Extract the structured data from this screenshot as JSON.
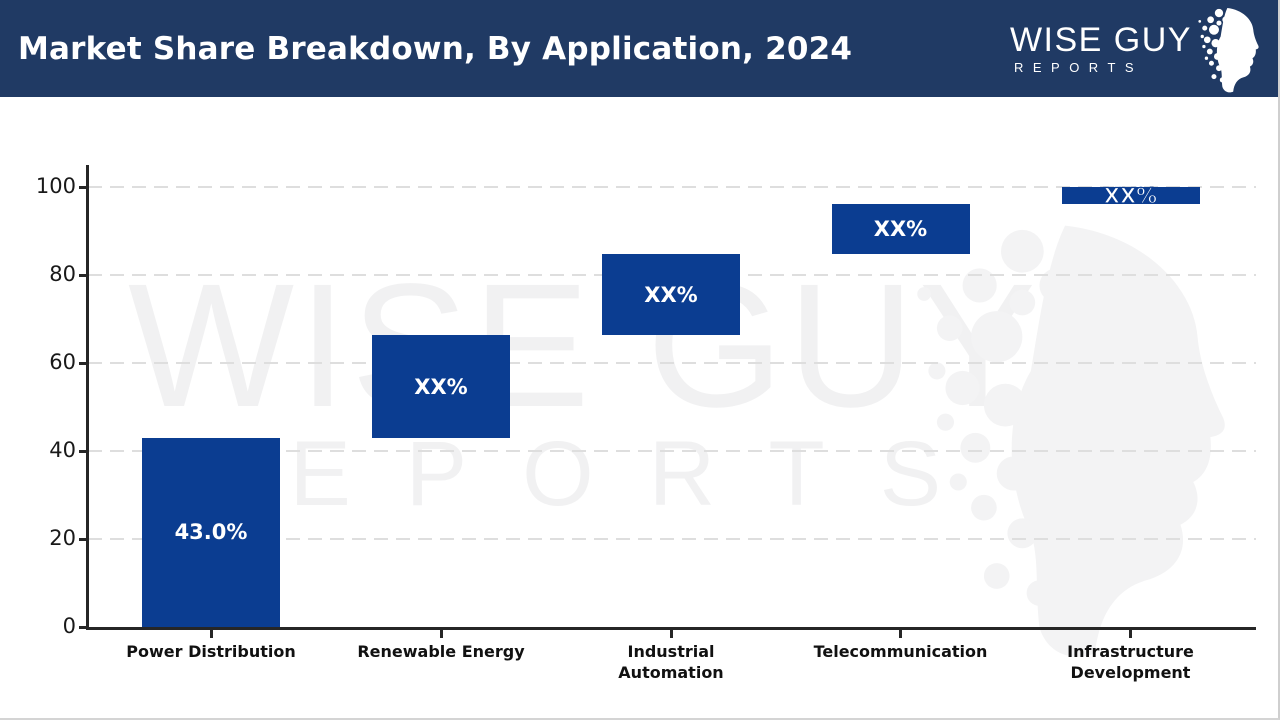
{
  "header": {
    "title": "Market Share Breakdown, By Application, 2024"
  },
  "brand": {
    "line1": "WISE GUY",
    "line2": "REPORTS"
  },
  "watermark": {
    "line1": "WISE GUY",
    "line2": "REPORTS"
  },
  "colors": {
    "header_bg": "#203a64",
    "bar": "#0b3d91",
    "grid": "#dedede",
    "axis": "#262626",
    "watermark": "#f1f1f2",
    "bar_label": "#ffffff"
  },
  "chart_data": {
    "type": "bar",
    "subtype": "waterfall",
    "title": "Market Share Breakdown, By Application, 2024",
    "xlabel": "",
    "ylabel": "",
    "ylim": [
      0,
      100
    ],
    "yticks": [
      0,
      20,
      40,
      60,
      80,
      100
    ],
    "grid": "horizontal-dashed",
    "legend": "none",
    "categories": [
      "Power Distribution",
      "Renewable Energy",
      "Industrial\nAutomation",
      "Telecommunication",
      "Infrastructure\nDevelopment"
    ],
    "values": [
      43.0,
      23.3,
      18.5,
      11.3,
      3.9
    ],
    "bars": [
      {
        "category": "Power Distribution",
        "start": 0,
        "end": 43.0,
        "label": "43.0%"
      },
      {
        "category": "Renewable Energy",
        "start": 43.0,
        "end": 66.3,
        "label": "XX%"
      },
      {
        "category": "Industrial\nAutomation",
        "start": 66.3,
        "end": 84.8,
        "label": "XX%"
      },
      {
        "category": "Telecommunication",
        "start": 84.8,
        "end": 96.1,
        "label": "XX%"
      },
      {
        "category": "Infrastructure\nDevelopment",
        "start": 96.1,
        "end": 100.0,
        "label": "XX%"
      }
    ]
  }
}
